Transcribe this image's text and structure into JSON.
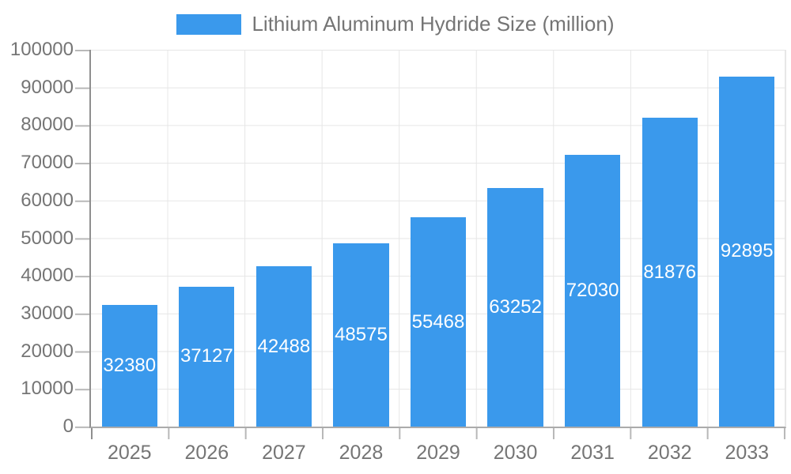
{
  "legend": {
    "label": "Lithium Aluminum Hydride Size (million)"
  },
  "chart_data": {
    "type": "bar",
    "title": "Lithium Aluminum Hydride Size (million)",
    "series": [
      {
        "name": "Lithium Aluminum Hydride Size (million)",
        "values": [
          32380,
          37127,
          42488,
          48575,
          55468,
          63252,
          72030,
          81876,
          92895
        ]
      }
    ],
    "categories": [
      "2025",
      "2026",
      "2027",
      "2028",
      "2029",
      "2030",
      "2031",
      "2032",
      "2033"
    ],
    "xlabel": "",
    "ylabel": "",
    "ylim": [
      0,
      100000
    ],
    "ytick_step": 10000,
    "yticks": [
      "0",
      "10000",
      "20000",
      "30000",
      "40000",
      "50000",
      "60000",
      "70000",
      "80000",
      "90000",
      "100000"
    ],
    "grid": true,
    "legend_position": "top-center",
    "bar_labels_visible": true,
    "bar_label_position": "center-inside"
  },
  "colors": {
    "accent": "#3A99EC",
    "grid": "#E6E6E6",
    "axis_y": "#8F8F8F",
    "axis_x": "#ABABAB",
    "tick": "#B8B8B8",
    "text": "#757575",
    "bar_label": "#FFFFFF",
    "background": "#FFFFFF"
  }
}
